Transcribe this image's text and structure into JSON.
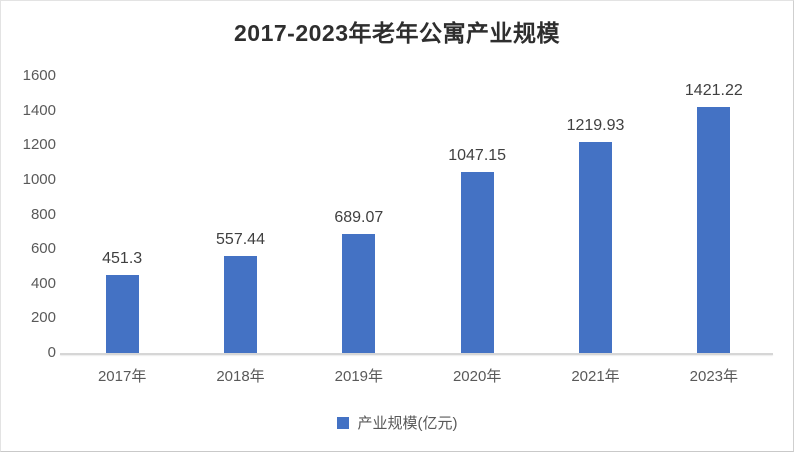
{
  "chart_data": {
    "type": "bar",
    "title": "2017-2023年老年公寓产业规模",
    "categories": [
      "2017年",
      "2018年",
      "2019年",
      "2020年",
      "2021年",
      "2023年"
    ],
    "series": [
      {
        "name": "产业规模(亿元)",
        "values": [
          451.3,
          557.44,
          689.07,
          1047.15,
          1219.93,
          1421.22
        ]
      }
    ],
    "data_labels": [
      "451.3",
      "557.44",
      "689.07",
      "1047.15",
      "1219.93",
      "1421.22"
    ],
    "xlabel": "",
    "ylabel": "",
    "ylim": [
      0,
      1600
    ],
    "y_ticks": [
      0,
      200,
      400,
      600,
      800,
      1000,
      1200,
      1400,
      1600
    ],
    "grid": false,
    "legend": {
      "label": "产业规模(亿元)",
      "position": "bottom"
    },
    "colors": {
      "bar": "#4472C4",
      "title_text": "#2e2e2e",
      "axis_text": "#595959",
      "data_label_text": "#404040",
      "axis_line": "#d6d6d6"
    }
  }
}
